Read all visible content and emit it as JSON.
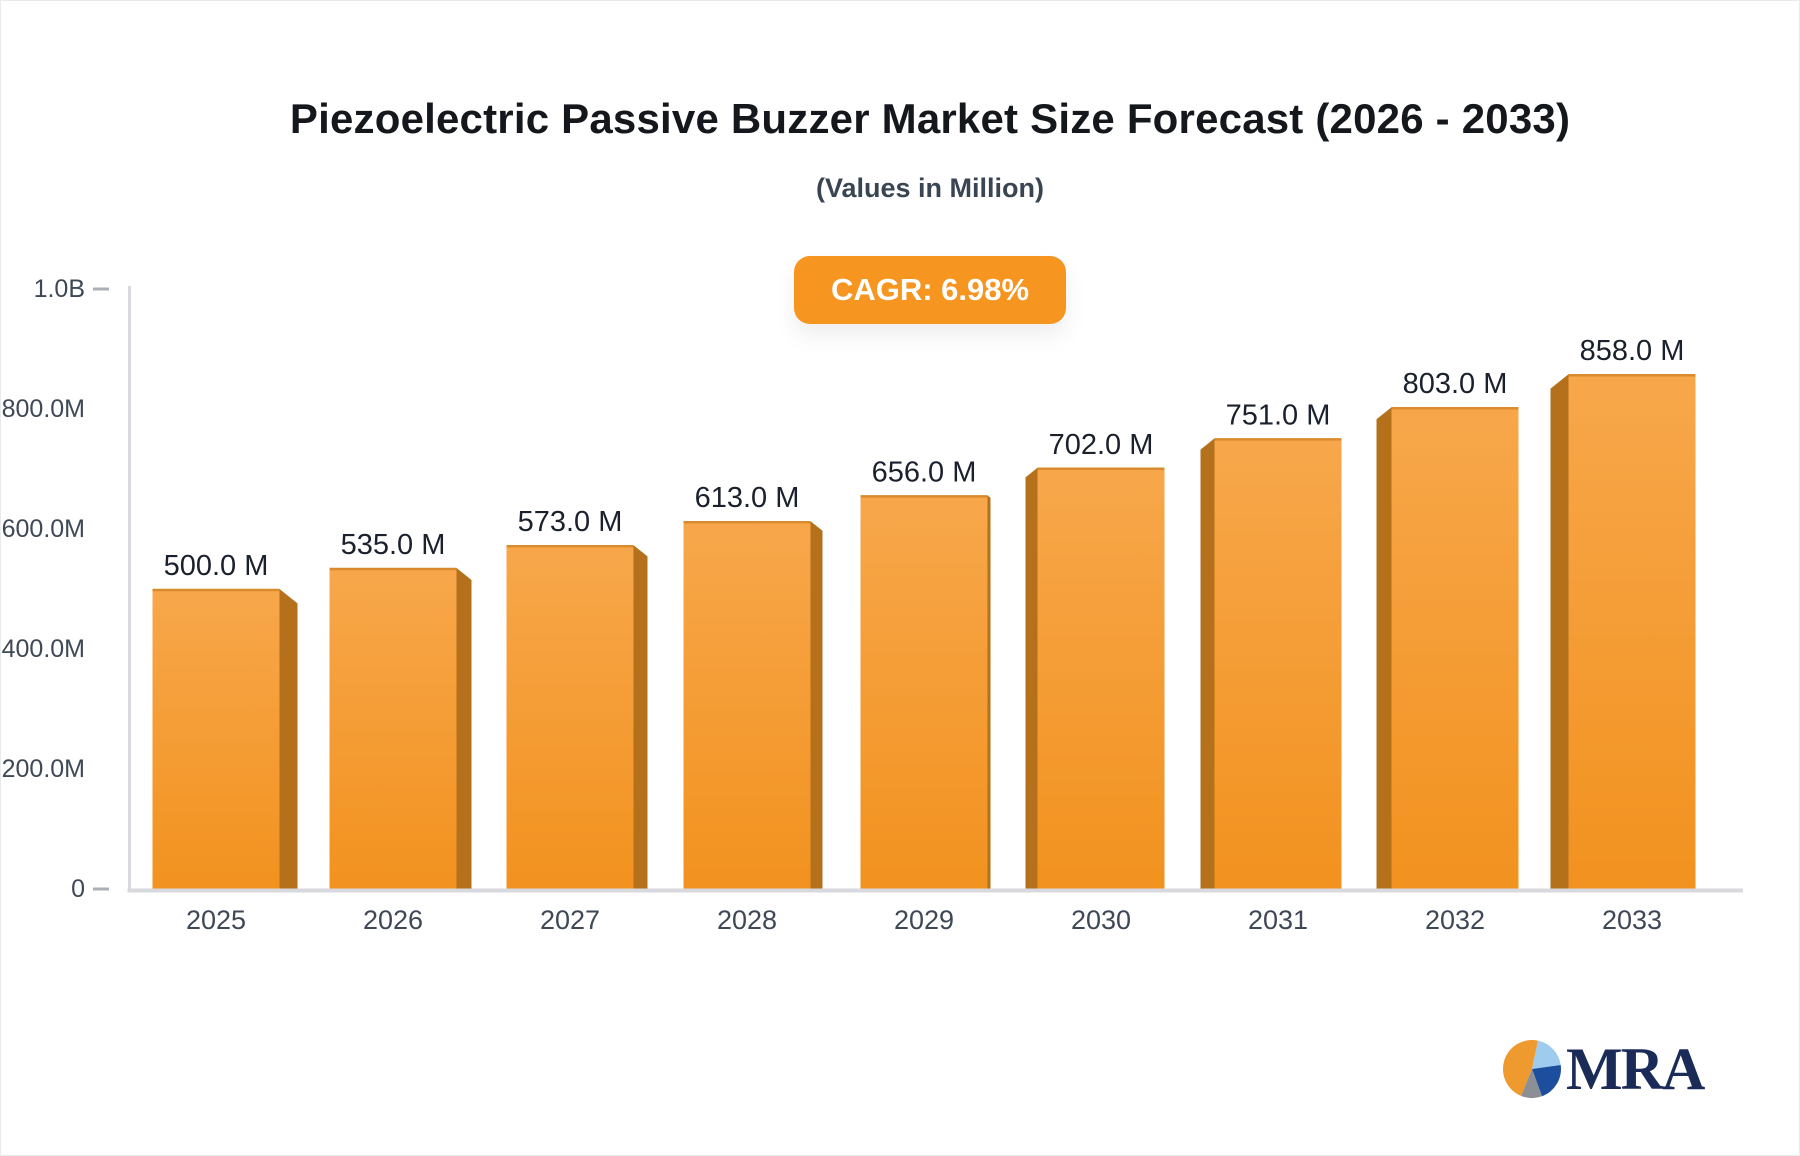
{
  "header": {
    "title": "Piezoelectric Passive Buzzer Market Size Forecast (2026 - 2033)",
    "subtitle": "(Values in Million)"
  },
  "badge": {
    "label": "CAGR: 6.98%",
    "bg": "#f6951f",
    "text_color": "#ffffff"
  },
  "chart_data": {
    "type": "bar",
    "title": "Piezoelectric Passive Buzzer Market Size Forecast (2026 - 2033)",
    "subtitle": "(Values in Million)",
    "unit": "Million",
    "categories": [
      "2025",
      "2026",
      "2027",
      "2028",
      "2029",
      "2030",
      "2031",
      "2032",
      "2033"
    ],
    "values": [
      500,
      535,
      573,
      613,
      656,
      702,
      751,
      803,
      858
    ],
    "value_labels": [
      "500.0 M",
      "535.0 M",
      "573.0 M",
      "613.0 M",
      "656.0 M",
      "702.0 M",
      "751.0 M",
      "803.0 M",
      "858.0 M"
    ],
    "xlabel": "",
    "ylabel": "",
    "ylim": [
      0,
      1000
    ],
    "yticks": [
      {
        "value": 0,
        "label": "0"
      },
      {
        "value": 200,
        "label": "200.0M"
      },
      {
        "value": 400,
        "label": "400.0M"
      },
      {
        "value": 600,
        "label": "600.0M"
      },
      {
        "value": 800,
        "label": "800.0M"
      },
      {
        "value": 1000,
        "label": "1.0B"
      }
    ],
    "grid": false,
    "legend": false,
    "colors": {
      "bar_face_top": "#f7a74b",
      "bar_face_bottom": "#f2921f",
      "bar_top_edge": "#d98b2e",
      "bar_side": "#b4701b",
      "axis_line": "#d8d9de",
      "tick_mark": "#abb0b8",
      "axis_label": "#3e4856",
      "value_label": "#1a212d"
    }
  },
  "logo": {
    "text": "MRA",
    "text_color": "#1b2b58",
    "slices": [
      {
        "name": "orange-slice",
        "color": "#ef9a2e"
      },
      {
        "name": "light-blue-slice",
        "color": "#9fcbee"
      },
      {
        "name": "dark-blue-slice",
        "color": "#1d4e9e"
      },
      {
        "name": "gray-slice",
        "color": "#8d8f96"
      }
    ]
  }
}
